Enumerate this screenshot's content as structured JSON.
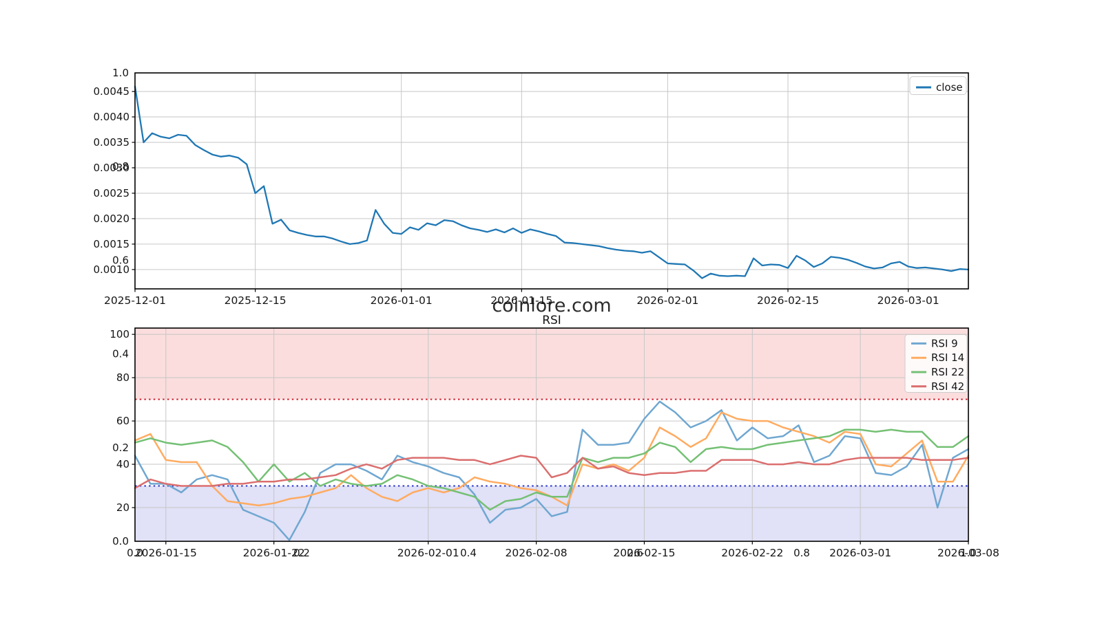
{
  "watermark": "coinlore.com",
  "ghost_axis": {
    "y_labels": [
      "1.0",
      "0.8",
      "0.6",
      "0.4",
      "0.2",
      "0.0"
    ],
    "x_labels": [
      "0.0",
      "0.2",
      "0.4",
      "0.6",
      "0.8",
      "1.0"
    ]
  },
  "colors": {
    "close": "#1f77b4",
    "rsi9": "#6fa7d1",
    "rsi14": "#ffab60",
    "rsi22": "#74c074",
    "rsi42": "#db6e6e",
    "grid": "#c6c6c6",
    "spine": "#000000",
    "overbought_band": "#fbdddd",
    "oversold_band": "#e1e1f7",
    "overbought_line": "#d02030",
    "oversold_line": "#2530c8",
    "watermark": "#8a8a8a",
    "legend_border": "#cccccc"
  },
  "chart_data": [
    {
      "type": "line",
      "name": "price",
      "title": "",
      "xlabel": "",
      "ylabel": "",
      "grid": true,
      "legend_position": "upper right",
      "legend": [
        "close"
      ],
      "ylim": [
        0.00062,
        0.004865
      ],
      "y_ticks": {
        "values": [
          0.0045,
          0.004,
          0.0035,
          0.003,
          0.0025,
          0.002,
          0.0015,
          0.001
        ],
        "labels": [
          "0.0045",
          "0.0040",
          "0.0035",
          "0.0030",
          "0.0025",
          "0.0020",
          "0.0015",
          "0.0010"
        ]
      },
      "x_ticks": {
        "indices": [
          0,
          14,
          31,
          45,
          62,
          76,
          90
        ],
        "labels": [
          "2025-12-01",
          "2025-12-15",
          "2026-01-01",
          "2026-01-15",
          "2026-02-01",
          "2026-02-15",
          "2026-03-01"
        ]
      },
      "series": [
        {
          "name": "close",
          "color_key": "close",
          "values": [
            0.0046,
            0.0035,
            0.00368,
            0.00361,
            0.00358,
            0.00365,
            0.00363,
            0.00345,
            0.00335,
            0.00326,
            0.00322,
            0.00324,
            0.0032,
            0.00307,
            0.0025,
            0.00264,
            0.0019,
            0.00198,
            0.00177,
            0.00172,
            0.00168,
            0.00165,
            0.00165,
            0.00161,
            0.00155,
            0.0015,
            0.00152,
            0.00157,
            0.00217,
            0.0019,
            0.00172,
            0.0017,
            0.00183,
            0.00178,
            0.00191,
            0.00187,
            0.00197,
            0.00195,
            0.00187,
            0.00181,
            0.00178,
            0.00174,
            0.00179,
            0.00173,
            0.00181,
            0.00172,
            0.00179,
            0.00175,
            0.0017,
            0.00166,
            0.00153,
            0.00152,
            0.0015,
            0.00148,
            0.00146,
            0.00142,
            0.00139,
            0.00137,
            0.00136,
            0.00133,
            0.00136,
            0.00124,
            0.00112,
            0.00111,
            0.0011,
            0.00098,
            0.00083,
            0.00092,
            0.00088,
            0.00087,
            0.00088,
            0.00087,
            0.00122,
            0.00108,
            0.0011,
            0.00109,
            0.00103,
            0.00127,
            0.00118,
            0.00105,
            0.00112,
            0.00125,
            0.00123,
            0.00119,
            0.00113,
            0.00106,
            0.00102,
            0.00104,
            0.00112,
            0.00115,
            0.00106,
            0.00103,
            0.00104,
            0.00102,
            0.001,
            0.00097,
            0.00101,
            0.001
          ]
        }
      ]
    },
    {
      "type": "line",
      "name": "rsi",
      "title": "RSI",
      "xlabel": "",
      "ylabel": "",
      "grid": true,
      "legend_position": "upper right",
      "legend": [
        "RSI 9",
        "RSI 14",
        "RSI 22",
        "RSI 42"
      ],
      "ylim": [
        0,
        100
      ],
      "hlines": [
        {
          "value": 70,
          "style": "dotted",
          "color_key": "overbought_line"
        },
        {
          "value": 30,
          "style": "dotted",
          "color_key": "oversold_line"
        }
      ],
      "bands": [
        {
          "from": 70,
          "to": 100,
          "color_key": "overbought_band"
        },
        {
          "from": 0,
          "to": 30,
          "color_key": "oversold_band"
        }
      ],
      "y_ticks": {
        "values": [
          100,
          80,
          60,
          40,
          20
        ],
        "labels": [
          "100",
          "80",
          "60",
          "40",
          "20"
        ]
      },
      "x_ticks": {
        "indices": [
          2,
          9,
          19,
          26,
          33,
          40,
          47,
          54
        ],
        "labels": [
          "2026-01-15",
          "2026-01-22",
          "2026-02-01",
          "2026-02-08",
          "2026-02-15",
          "2026-02-22",
          "2026-03-01",
          "2026-03-08"
        ]
      },
      "series": [
        {
          "name": "RSI 9",
          "color_key": "rsi9",
          "values": [
            44,
            31,
            31,
            27,
            33,
            35,
            33,
            19,
            16,
            13,
            5,
            18,
            36,
            40,
            40,
            37,
            33,
            44,
            41,
            39,
            36,
            34,
            26,
            13,
            19,
            20,
            24,
            16,
            18,
            56,
            49,
            49,
            50,
            61,
            69,
            64,
            57,
            60,
            65,
            51,
            57,
            52,
            53,
            58,
            41,
            44,
            53,
            52,
            36,
            35,
            39,
            49,
            20,
            43,
            47
          ]
        },
        {
          "name": "RSI 14",
          "color_key": "rsi14",
          "values": [
            51,
            54,
            42,
            41,
            41,
            30,
            23,
            22,
            21,
            22,
            24,
            25,
            27,
            29,
            35,
            29,
            25,
            23,
            27,
            29,
            27,
            29,
            34,
            32,
            31,
            29,
            28,
            25,
            21,
            40,
            38,
            40,
            37,
            43,
            57,
            53,
            48,
            52,
            64,
            61,
            60,
            60,
            57,
            55,
            53,
            50,
            55,
            54,
            40,
            39,
            45,
            51,
            32,
            32,
            44
          ]
        },
        {
          "name": "RSI 22",
          "color_key": "rsi22",
          "values": [
            50,
            52,
            50,
            49,
            50,
            51,
            48,
            41,
            32,
            40,
            32,
            36,
            30,
            33,
            31,
            30,
            31,
            35,
            33,
            30,
            29,
            27,
            25,
            19,
            23,
            24,
            27,
            25,
            25,
            43,
            41,
            43,
            43,
            45,
            50,
            48,
            41,
            47,
            48,
            47,
            47,
            49,
            50,
            51,
            52,
            53,
            56,
            56,
            55,
            56,
            55,
            55,
            48,
            48,
            53
          ]
        },
        {
          "name": "RSI 42",
          "color_key": "rsi42",
          "values": [
            29,
            33,
            31,
            30,
            30,
            30,
            31,
            31,
            32,
            32,
            33,
            33,
            34,
            35,
            38,
            40,
            38,
            42,
            43,
            43,
            43,
            42,
            42,
            40,
            42,
            44,
            43,
            34,
            36,
            43,
            38,
            39,
            36,
            35,
            36,
            36,
            37,
            37,
            42,
            42,
            42,
            40,
            40,
            41,
            40,
            40,
            42,
            43,
            43,
            43,
            43,
            42,
            42,
            42,
            43
          ]
        }
      ]
    }
  ]
}
